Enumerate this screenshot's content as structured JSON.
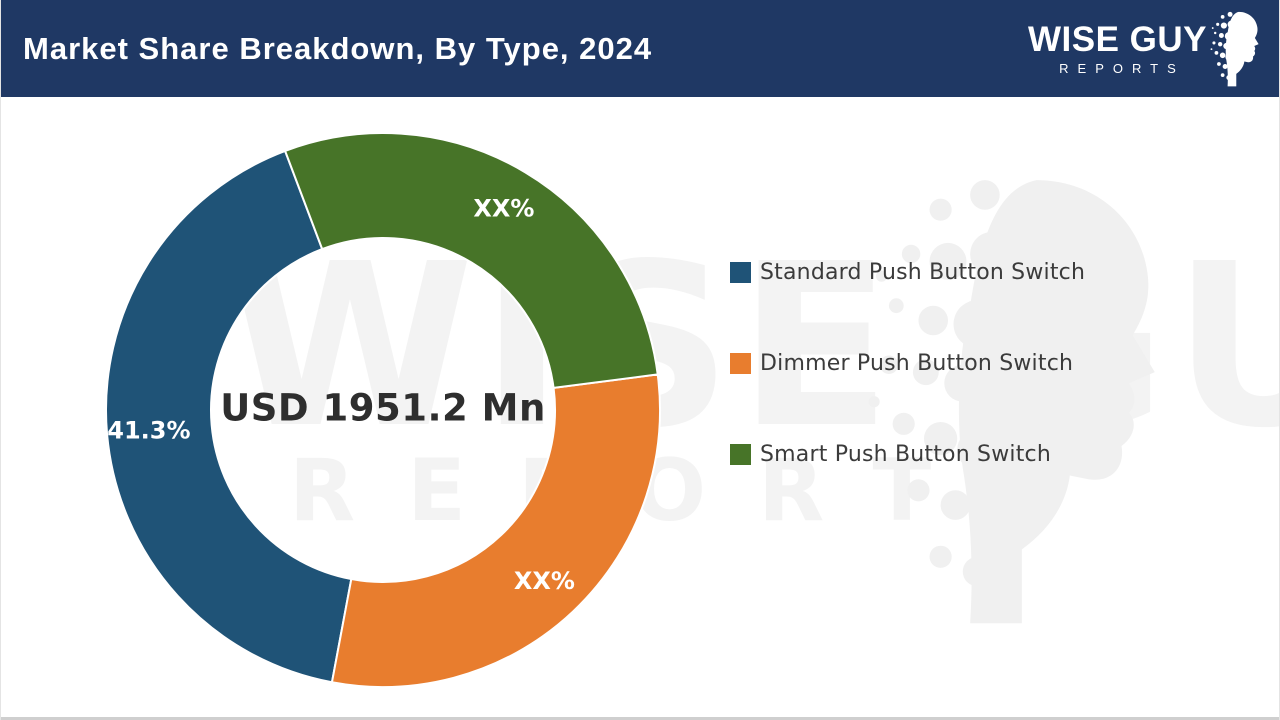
{
  "header": {
    "title": "Market Share Breakdown, By Type, 2024",
    "bg_color": "#1f3864",
    "text_color": "#ffffff",
    "logo_primary": "WISE GUY",
    "logo_secondary": "REPORTS"
  },
  "watermark": {
    "line1": "WISE GUY",
    "line2": "REPORTS"
  },
  "chart_data": {
    "type": "pie",
    "subtype": "donut",
    "title": "Market Share Breakdown, By Type, 2024",
    "center_label": "USD 1951.2 Mn",
    "start_angle_deg": 110.7,
    "direction": "counterclockwise",
    "legend_position": "right",
    "slices": [
      {
        "label": "Standard Push Button Switch",
        "value_label": "41.3%",
        "percent": 41.3,
        "color": "#1f5377"
      },
      {
        "label": "Dimmer Push Button Switch",
        "value_label": "XX%",
        "percent": 30.0,
        "color": "#e87d2e"
      },
      {
        "label": "Smart Push Button Switch",
        "value_label": "XX%",
        "percent": 28.7,
        "color": "#477428"
      }
    ]
  }
}
